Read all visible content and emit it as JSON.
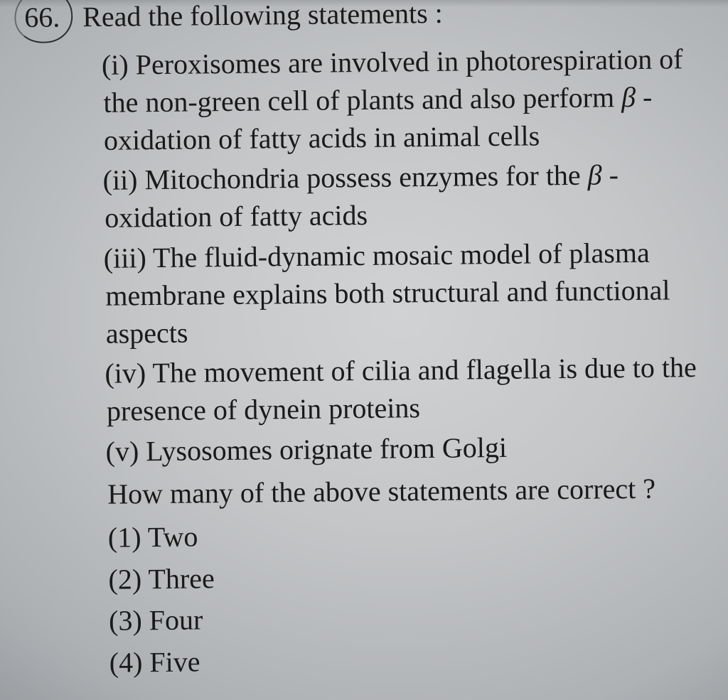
{
  "question": {
    "number": "66.",
    "stem": "Read the following statements :",
    "roman": [
      {
        "label": "(i)",
        "text_a": "Peroxisomes are involved in photorespiration of the non-green cell of plants and also perform ",
        "beta": "β",
        "text_b": " -oxidation of fatty acids in animal cells"
      },
      {
        "label": "(ii)",
        "text_a": "Mitochondria possess enzymes for the ",
        "beta": "β",
        "text_b": " - oxidation of fatty acids"
      },
      {
        "label": "(iii)",
        "text_a": "The fluid-dynamic mosaic model of plasma membrane explains both structural and functional aspects",
        "beta": "",
        "text_b": ""
      },
      {
        "label": "(iv)",
        "text_a": "The movement of cilia and flagella is due to the presence of dynein proteins",
        "beta": "",
        "text_b": ""
      },
      {
        "label": "(v)",
        "text_a": "Lysosomes orignate from Golgi",
        "beta": "",
        "text_b": ""
      }
    ],
    "subquestion": "How many of the above statements are correct ?",
    "options": [
      {
        "label": "(1)",
        "text": "Two"
      },
      {
        "label": "(2)",
        "text": "Three"
      },
      {
        "label": "(3)",
        "text": "Four"
      },
      {
        "label": "(4)",
        "text": "Five"
      }
    ]
  },
  "style": {
    "font_family": "Georgia, 'Times New Roman', serif",
    "base_font_size_pt": 30,
    "text_color": "#1a1a1a",
    "bg_gradient_inner": "#d0d2d3",
    "bg_gradient_outer": "#4e5257",
    "circle_border_color": "#2b2b2b",
    "rotation_deg": -0.6
  }
}
